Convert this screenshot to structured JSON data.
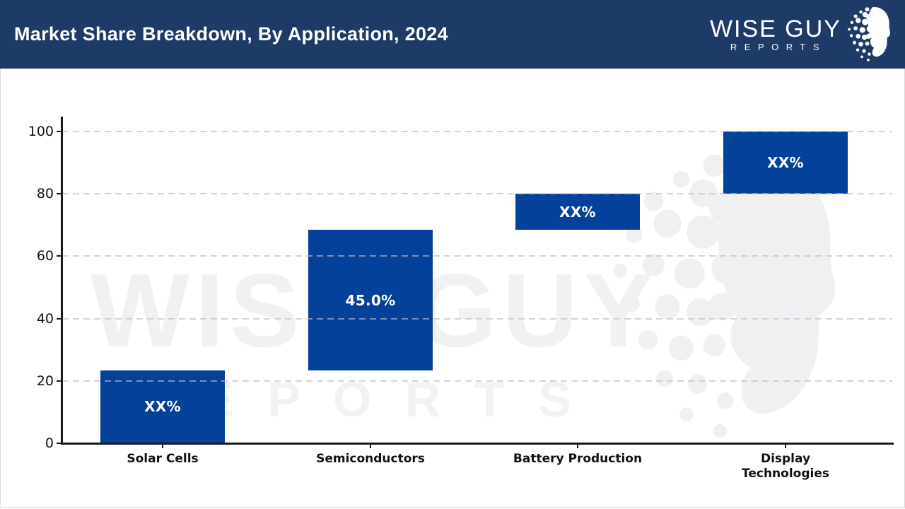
{
  "header": {
    "title": "Market Share Breakdown, By Application, 2024",
    "bg_color": "#1e3a66",
    "logo": {
      "line1": "WISE GUY",
      "line2": "REPORTS"
    }
  },
  "watermark": {
    "line1": "WISE GUY",
    "line2": "R E P O R T S"
  },
  "chart_data": {
    "type": "bar",
    "variant": "waterfall",
    "title": "Market Share Breakdown, By Application, 2024",
    "categories": [
      "Solar Cells",
      "Semiconductors",
      "Battery Production",
      "Display Technologies"
    ],
    "category_lines": [
      [
        "Solar Cells"
      ],
      [
        "Semiconductors"
      ],
      [
        "Battery Production"
      ],
      [
        "Display",
        "Technologies"
      ]
    ],
    "segments": [
      {
        "category": "Solar Cells",
        "start": 0,
        "end": 23.4,
        "label": "XX%"
      },
      {
        "category": "Semiconductors",
        "start": 23.4,
        "end": 68.4,
        "label": "45.0%",
        "value": 45.0
      },
      {
        "category": "Battery Production",
        "start": 68.4,
        "end": 80.1,
        "label": "XX%"
      },
      {
        "category": "Display Technologies",
        "start": 80.1,
        "end": 100,
        "label": "XX%"
      }
    ],
    "yticks": [
      0,
      20,
      40,
      60,
      80,
      100
    ],
    "ylim": [
      0,
      104.8
    ],
    "xlabel": "",
    "ylabel": "",
    "grid": true,
    "legend": false,
    "bar_color": "#04419a",
    "bar_label_color": "#ffffff",
    "axis_color": "#1a1a1a"
  }
}
